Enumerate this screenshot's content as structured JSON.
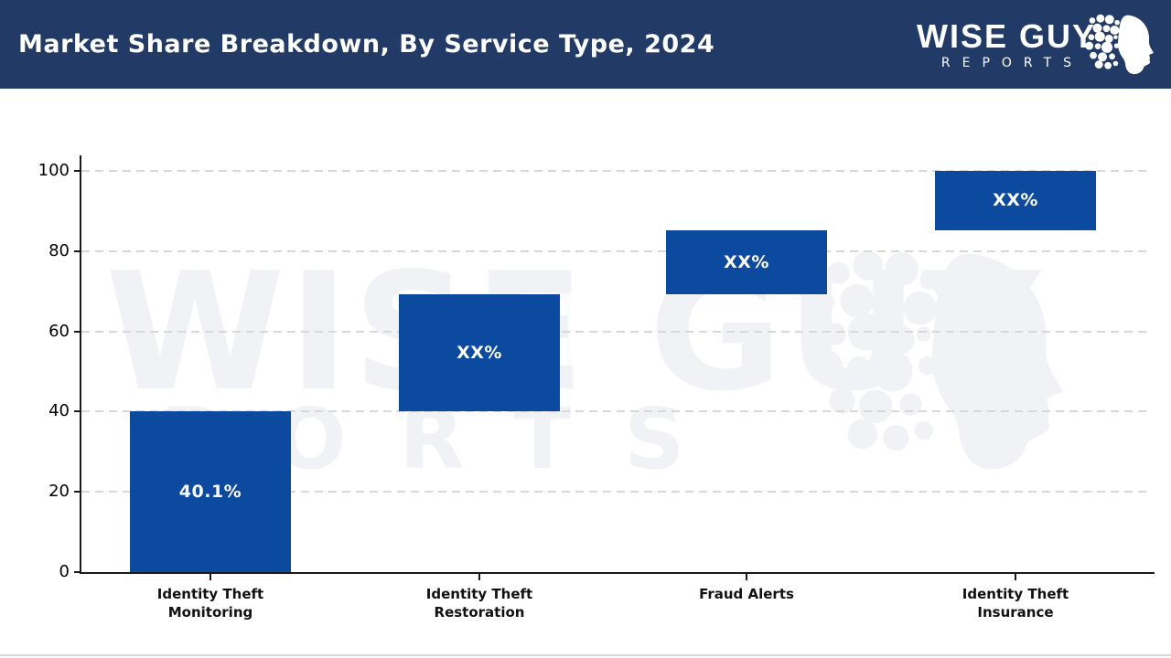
{
  "header": {
    "title": "Market Share Breakdown, By Service Type, 2024",
    "bg_color": "#213a66",
    "logo": {
      "line1": "WISE GUY",
      "line2": "REPORTS"
    }
  },
  "watermark": {
    "line1": "WISE GUY",
    "line2": "PORTS"
  },
  "chart_data": {
    "type": "bar",
    "subtype": "waterfall",
    "title": "Market Share Breakdown, By Service Type, 2024",
    "categories": [
      "Identity Theft\nMonitoring",
      "Identity Theft\nRestoration",
      "Fraud Alerts",
      "Identity Theft\nInsurance"
    ],
    "bar_labels": [
      "40.1%",
      "XX%",
      "XX%",
      "XX%"
    ],
    "segments": [
      {
        "start": 0,
        "end": 40.1
      },
      {
        "start": 40.1,
        "end": 69.2
      },
      {
        "start": 69.2,
        "end": 85.3
      },
      {
        "start": 85.3,
        "end": 100
      }
    ],
    "values_estimated": [
      40.1,
      29.1,
      16.1,
      14.7
    ],
    "xlabel": "",
    "ylabel": "",
    "ylim": [
      0,
      100
    ],
    "yticks": [
      0,
      20,
      40,
      60,
      80,
      100
    ],
    "grid": "horizontal-dashed",
    "legend": "none",
    "bar_color": "#0b4a9e",
    "bar_label_color": "#ffffff",
    "axis_color": "#1a1a1a",
    "gridline_color": "#d8d8d8"
  }
}
